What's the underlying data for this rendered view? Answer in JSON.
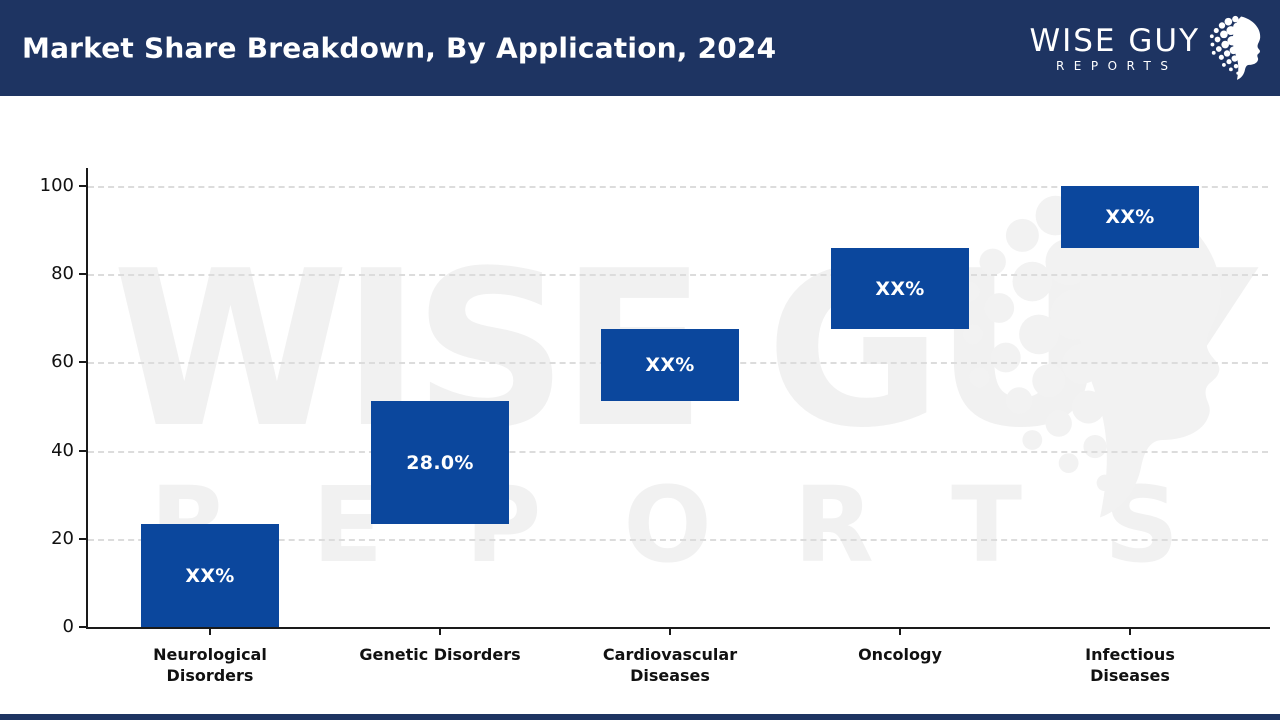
{
  "header": {
    "title": "Market Share Breakdown, By Application, 2024",
    "logo": {
      "line1": "WISE GUY",
      "line2": "REPORTS"
    }
  },
  "watermark": {
    "line1": "WISE GUY",
    "line2": "REPORTS"
  },
  "colors": {
    "header_bg": "#1e3462",
    "footer_bg": "#1e3462",
    "bar": "#0b479d",
    "bar_label_text": "#ffffff",
    "grid": "#dcdcdc",
    "axis": "#1a1a1a",
    "watermark": "#f1f1f1"
  },
  "chart_data": {
    "type": "bar",
    "subtype": "waterfall",
    "title": "Market Share Breakdown, By Application, 2024",
    "categories": [
      "Neurological Disorders",
      "Genetic Disorders",
      "Cardiovascular Diseases",
      "Oncology",
      "Infectious Diseases"
    ],
    "categories_display": [
      "Neurological\nDisorders",
      "Genetic Disorders",
      "Cardiovascular\nDiseases",
      "Oncology",
      "Infectious\nDiseases"
    ],
    "segments": [
      {
        "category": "Neurological Disorders",
        "start": 0,
        "end": 23.3,
        "value": 23.3,
        "value_label": "XX%"
      },
      {
        "category": "Genetic Disorders",
        "start": 23.3,
        "end": 51.3,
        "value": 28.0,
        "value_label": "28.0%"
      },
      {
        "category": "Cardiovascular Diseases",
        "start": 51.3,
        "end": 67.6,
        "value": 16.3,
        "value_label": "XX%"
      },
      {
        "category": "Oncology",
        "start": 67.6,
        "end": 85.9,
        "value": 18.3,
        "value_label": "XX%"
      },
      {
        "category": "Infectious Diseases",
        "start": 85.9,
        "end": 100,
        "value": 14.1,
        "value_label": "XX%"
      }
    ],
    "ylim": [
      0,
      100
    ],
    "yticks": [
      0,
      20,
      40,
      60,
      80,
      100
    ],
    "xlabel": "",
    "ylabel": "",
    "grid": "horizontal-dashed",
    "legend": "none"
  }
}
